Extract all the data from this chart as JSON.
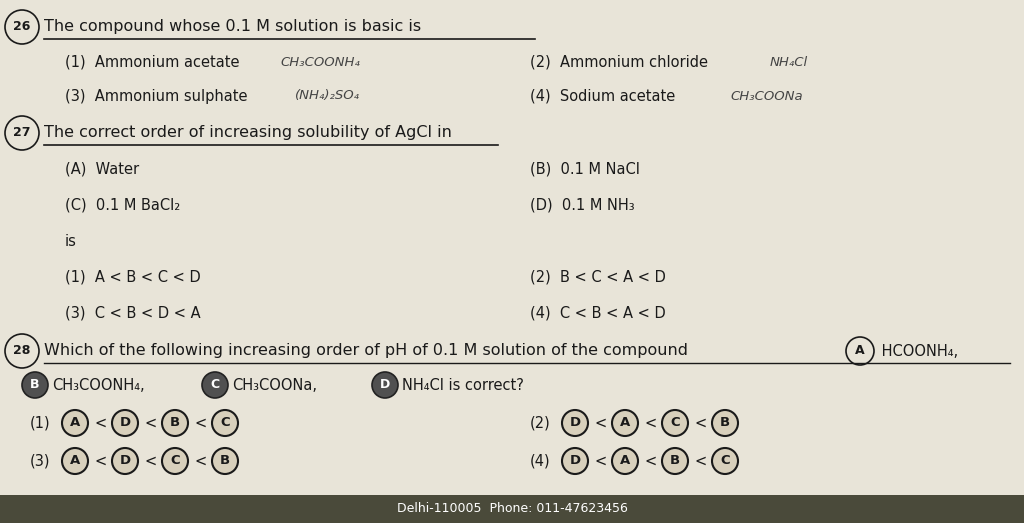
{
  "bg_color": "#c8c0a8",
  "paper_color": "#e8e4d8",
  "text_color": "#1a1a1a",
  "footer_bg": "#4a4a3a",
  "footer_text": "Delhi-110005  Phone: 011-47623456",
  "q26_title": "The compound whose 0.1 M solution is basic is",
  "q26_opt1": "(1)  Ammonium acetate",
  "q26_opt1_formula": "CH₃COONH₄",
  "q26_opt2": "(2)  Ammonium chloride",
  "q26_opt2_formula": "NH₄Cl",
  "q26_opt3": "(3)  Ammonium sulphate",
  "q26_opt3_formula": "(NH₄)₂SO₄",
  "q26_opt4": "(4)  Sodium acetate",
  "q26_opt4_formula": "CH₃COONa",
  "q27_title": "The correct order of increasing solubility of AgCl in",
  "q27_optA": "(A)  Water",
  "q27_optB": "(B)  0.1 M NaCl",
  "q27_optC": "(C)  0.1 M BaCl₂",
  "q27_optD": "(D)  0.1 M NH₃",
  "q27_is": "is",
  "q27_ans1": "(1)  A < B < C < D",
  "q27_ans2": "(2)  B < C < A < D",
  "q27_ans3": "(3)  C < B < D < A",
  "q27_ans4": "(4)  C < B < A < D",
  "q28_title": "Which of the following increasing order of pH of 0.1 M solution of the compound",
  "q28_hcoonh4": " HCOONH₄,",
  "q28_sub_b": "CH₃COONH₄,",
  "q28_sub_c": "CH₃COONa,",
  "q28_sub_d": "NH₄Cl is correct?",
  "q28_ans1_letters": [
    "A",
    "<",
    "D",
    "<",
    "B",
    "<",
    "C"
  ],
  "q28_ans2_letters": [
    "D",
    "<",
    "A",
    "<",
    "C",
    "<",
    "B"
  ],
  "q28_ans3_letters": [
    "A",
    "<",
    "D",
    "<",
    "C",
    "<",
    "B"
  ],
  "q28_ans4_letters": [
    "D",
    "<",
    "A",
    "<",
    "B",
    "<",
    "C"
  ]
}
